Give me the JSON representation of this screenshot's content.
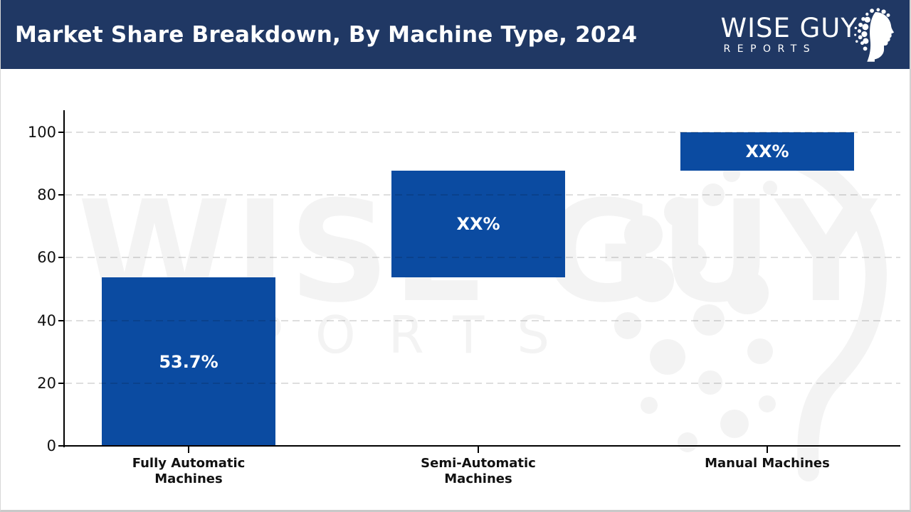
{
  "header": {
    "title": "Market Share Breakdown, By Machine Type, 2024",
    "bg_color": "#203864",
    "logo": {
      "wordmark": "WISE GUY",
      "subtext": "REPORTS"
    }
  },
  "watermark": {
    "wordmark": "WISE GUY",
    "subtext": "REPORTS",
    "color": "#f3f3f3"
  },
  "chart_data": {
    "type": "bar",
    "subtype": "stacked-waterfall",
    "title": "Market Share Breakdown, By Machine Type, 2024",
    "categories": [
      "Fully Automatic Machines",
      "Semi-Automatic Machines",
      "Manual Machines"
    ],
    "segments": [
      {
        "category": "Fully Automatic Machines",
        "start": 0,
        "end": 53.7,
        "label": "53.7%"
      },
      {
        "category": "Semi-Automatic Machines",
        "start": 53.7,
        "end": 87.7,
        "label": "XX%"
      },
      {
        "category": "Manual Machines",
        "start": 87.7,
        "end": 100,
        "label": "XX%"
      }
    ],
    "yticks": [
      0,
      20,
      40,
      60,
      80,
      100
    ],
    "ylim": [
      0,
      107
    ],
    "xlabel": "",
    "ylabel": "",
    "grid": "horizontal-dashed",
    "legend": "none",
    "bar_color": "#0b4ba1",
    "bar_label_color": "#ffffff",
    "axis_color": "#000000",
    "gridline_color": "rgba(0,0,0,0.13)"
  }
}
